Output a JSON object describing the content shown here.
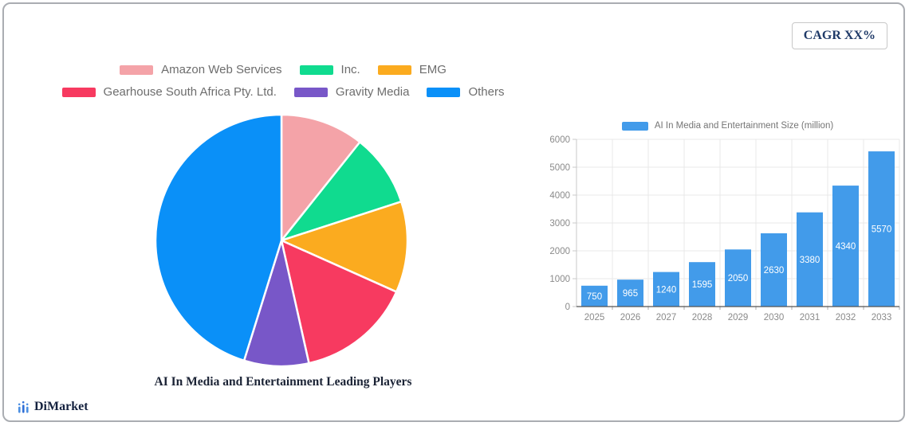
{
  "header": {
    "cagr_label": "CAGR XX%"
  },
  "footer": {
    "brand_name": "DiMarket"
  },
  "colors": {
    "bar_blue": "#429BEA",
    "grid": "#e8e8e8",
    "axis_light": "#c9c9c9",
    "axis_dark": "#555555",
    "tick_label": "#8a8a8a",
    "value_label": "#ffffff"
  },
  "chart_data": [
    {
      "type": "pie",
      "title": "AI In Media and Entertainment Leading Players",
      "units": "percent",
      "start_angle_deg": 0,
      "legend_rows": [
        3,
        3
      ],
      "slices": [
        {
          "label": "Amazon Web Services",
          "value": 10.7,
          "color": "#F4A3A8"
        },
        {
          "label": "Inc.",
          "value": 9.3,
          "color": "#10DB8F"
        },
        {
          "label": "EMG",
          "value": 11.7,
          "color": "#FBAB1F"
        },
        {
          "label": "Gearhouse South Africa Pty. Ltd.",
          "value": 14.8,
          "color": "#F73A60"
        },
        {
          "label": "Gravity Media",
          "value": 8.3,
          "color": "#7857C8"
        },
        {
          "label": "Others",
          "value": 45.2,
          "color": "#0A90F8"
        }
      ]
    },
    {
      "type": "bar",
      "legend_label": "AI In Media and Entertainment Size (million)",
      "categories": [
        "2025",
        "2026",
        "2027",
        "2028",
        "2029",
        "2030",
        "2031",
        "2032",
        "2033"
      ],
      "values": [
        750,
        965,
        1240,
        1595,
        2050,
        2630,
        3380,
        4340,
        5570
      ],
      "ylim": [
        0,
        6000
      ],
      "yticks": [
        0,
        1000,
        2000,
        3000,
        4000,
        5000,
        6000
      ],
      "grid": true,
      "legend_position": "top"
    }
  ]
}
